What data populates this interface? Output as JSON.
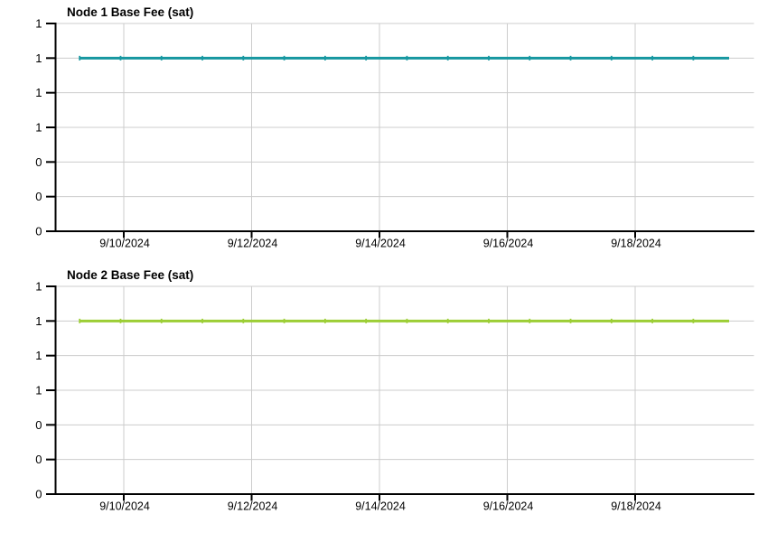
{
  "layout_colors": {
    "background": "#ffffff",
    "grid_color": "#cccccc",
    "axis_color": "#000000",
    "text_color": "#000000"
  },
  "chart_data": [
    {
      "type": "line",
      "title": "Node 1 Base Fee (sat)",
      "xlabel": "",
      "ylabel": "",
      "ylim": [
        0,
        1.2
      ],
      "grid": true,
      "legend": "none",
      "y_ticks": [
        {
          "value": 1.2,
          "label": "1"
        },
        {
          "value": 1.0,
          "label": "1"
        },
        {
          "value": 0.8,
          "label": "1"
        },
        {
          "value": 0.6,
          "label": "1"
        },
        {
          "value": 0.4,
          "label": "0"
        },
        {
          "value": 0.2,
          "label": "0"
        },
        {
          "value": 0.0,
          "label": "0"
        }
      ],
      "x_ticks": [
        {
          "day": 1,
          "label": "9/10/2024"
        },
        {
          "day": 3,
          "label": "9/12/2024"
        },
        {
          "day": 5,
          "label": "9/14/2024"
        },
        {
          "day": 7,
          "label": "9/16/2024"
        },
        {
          "day": 9,
          "label": "9/18/2024"
        }
      ],
      "x_domain_days": [
        -0.07,
        10.86
      ],
      "series": [
        {
          "name": "Node 1 base fee",
          "color": "#1697A0",
          "value": 1,
          "start_day": 0.31,
          "end_day": 10.47,
          "marker_interval_days": 0.64
        }
      ]
    },
    {
      "type": "line",
      "title": "Node 2 Base Fee (sat)",
      "xlabel": "",
      "ylabel": "",
      "ylim": [
        0,
        1.2
      ],
      "grid": true,
      "legend": "none",
      "y_ticks": [
        {
          "value": 1.2,
          "label": "1"
        },
        {
          "value": 1.0,
          "label": "1"
        },
        {
          "value": 0.8,
          "label": "1"
        },
        {
          "value": 0.6,
          "label": "1"
        },
        {
          "value": 0.4,
          "label": "0"
        },
        {
          "value": 0.2,
          "label": "0"
        },
        {
          "value": 0.0,
          "label": "0"
        }
      ],
      "x_ticks": [
        {
          "day": 1,
          "label": "9/10/2024"
        },
        {
          "day": 3,
          "label": "9/12/2024"
        },
        {
          "day": 5,
          "label": "9/14/2024"
        },
        {
          "day": 7,
          "label": "9/16/2024"
        },
        {
          "day": 9,
          "label": "9/18/2024"
        }
      ],
      "x_domain_days": [
        -0.07,
        10.86
      ],
      "series": [
        {
          "name": "Node 2 base fee",
          "color": "#9CCE35",
          "value": 1,
          "start_day": 0.31,
          "end_day": 10.47,
          "marker_interval_days": 0.64
        }
      ]
    }
  ]
}
